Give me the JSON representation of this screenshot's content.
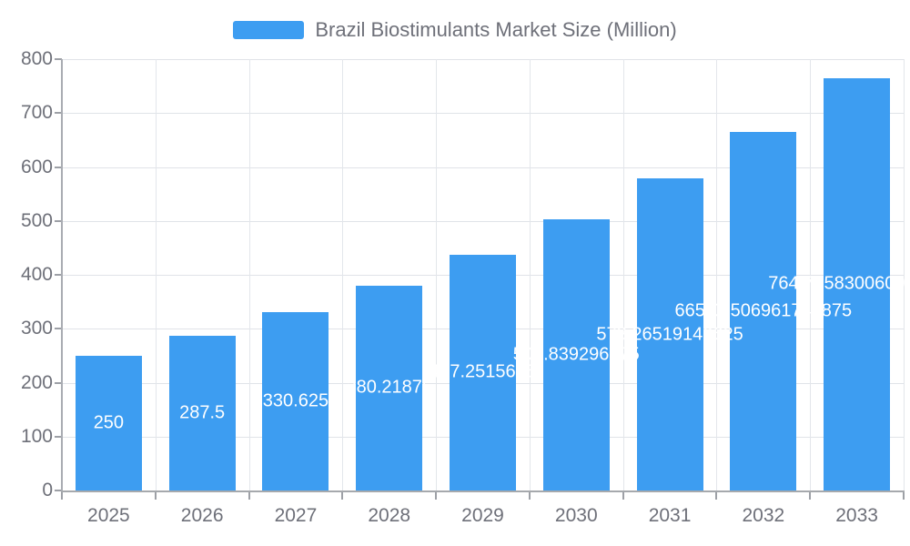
{
  "chart_data": {
    "type": "bar",
    "title": "Brazil Biostimulants Market Size (Million)",
    "legend": "Brazil Biostimulants Market Size (Million)",
    "legend_position": "top-center",
    "categories": [
      "2025",
      "2026",
      "2027",
      "2028",
      "2029",
      "2030",
      "2031",
      "2032",
      "2033"
    ],
    "values": [
      250,
      287.5,
      330.625,
      380.21875,
      437.2515625,
      502.839296875,
      578.26519140625,
      665.0050696174187,
      764.7558300600316
    ],
    "value_labels": [
      "250",
      "287.5",
      "330.625",
      "380.21875",
      "437.2515625",
      "502.839296875",
      "578.26519140625",
      "665.00506961741875",
      "764.75583006003156"
    ],
    "xlabel": "",
    "ylabel": "",
    "ylim": [
      0,
      800
    ],
    "yticks": [
      0,
      100,
      200,
      300,
      400,
      500,
      600,
      700,
      800
    ],
    "grid": true,
    "colors": {
      "bar": "#3D9DF1",
      "axis_label": "#6E7079",
      "axis_line": "#A9ACB2",
      "gridline": "#E0E3E8",
      "bar_label_text": "#FFFFFF",
      "background": "#FFFFFF"
    }
  }
}
